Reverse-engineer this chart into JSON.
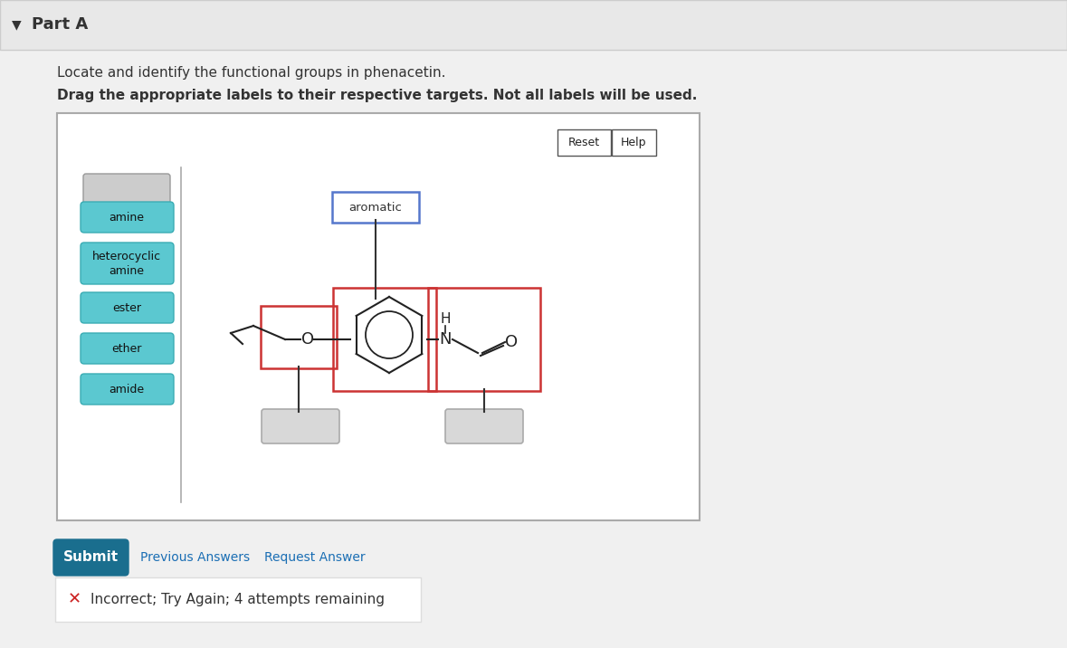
{
  "bg_color": "#f5f5f5",
  "white": "#ffffff",
  "title_text": "Part A",
  "instruction1": "Locate and identify the functional groups in phenacetin.",
  "instruction2": "Drag the appropriate labels to their respective targets. Not all labels will be used.",
  "labels_left": [
    "amine",
    "heterocyclic\namine",
    "ester",
    "ether",
    "amide"
  ],
  "label_colors": [
    "#5bc8d0",
    "#5bc8d0",
    "#5bc8d0",
    "#5bc8d0",
    "#5bc8d0"
  ],
  "label_text_color": "#1a1a1a",
  "aromatic_box_color": "#5577aa",
  "red_box_color": "#cc3333",
  "empty_box_color": "#cccccc",
  "reset_text": "Reset",
  "help_text": "Help",
  "submit_bg": "#1a6e8e",
  "submit_text": "Submit",
  "prev_answers_text": "Previous Answers",
  "request_answer_text": "Request Answer",
  "incorrect_text": "Incorrect; Try Again; 4 attempts remaining"
}
